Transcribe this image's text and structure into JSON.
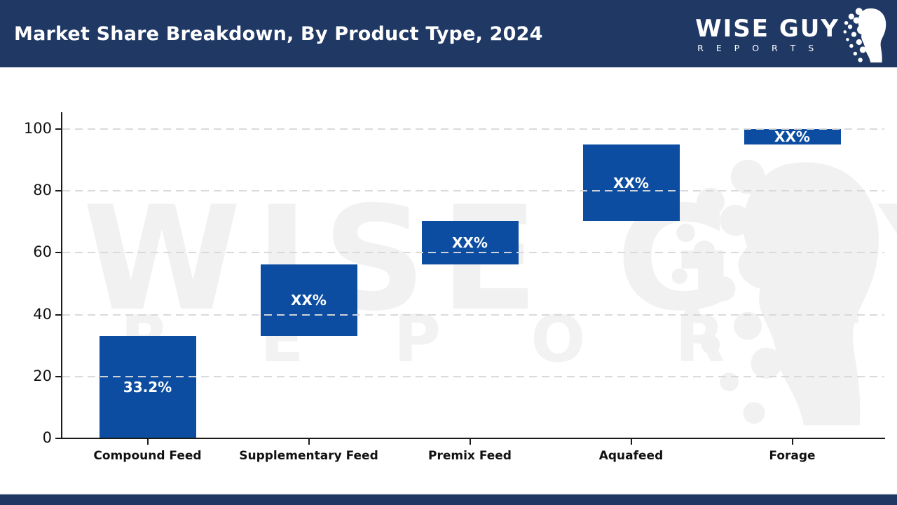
{
  "header": {
    "title": "Market Share Breakdown, By Product Type, 2024",
    "logo": {
      "line1": "WISE GUY",
      "line2": "R E P O R T S"
    }
  },
  "watermark": {
    "line1": "WISE GUY",
    "line2": "R E P O R T S"
  },
  "chart_data": {
    "type": "bar",
    "subtype": "waterfall",
    "title": "Market Share Breakdown, By Product Type, 2024",
    "categories": [
      "Compound Feed",
      "Supplementary Feed",
      "Premix Feed",
      "Aquafeed",
      "Forage"
    ],
    "segments": [
      {
        "category": "Compound Feed",
        "start": 0,
        "end": 33.2,
        "label": "33.2%"
      },
      {
        "category": "Supplementary Feed",
        "start": 33.2,
        "end": 56.2,
        "label": "XX%"
      },
      {
        "category": "Premix Feed",
        "start": 56.2,
        "end": 70.3,
        "label": "XX%"
      },
      {
        "category": "Aquafeed",
        "start": 70.3,
        "end": 95.0,
        "label": "XX%"
      },
      {
        "category": "Forage",
        "start": 95.0,
        "end": 100.0,
        "label": "XX%"
      }
    ],
    "xlabel": "",
    "ylabel": "",
    "ylim": [
      0,
      100
    ],
    "yticks": [
      0,
      20,
      40,
      60,
      80,
      100
    ],
    "grid": "horizontal-dashed",
    "legend": "none"
  },
  "colors": {
    "header_bg": "#1F3864",
    "footer_bg": "#1F3864",
    "bar": "#0C4DA2",
    "bar_label": "#FFFFFF",
    "grid": "#D8D8D8",
    "axis": "#1A1A1A",
    "watermark": "#F1F1F1"
  }
}
